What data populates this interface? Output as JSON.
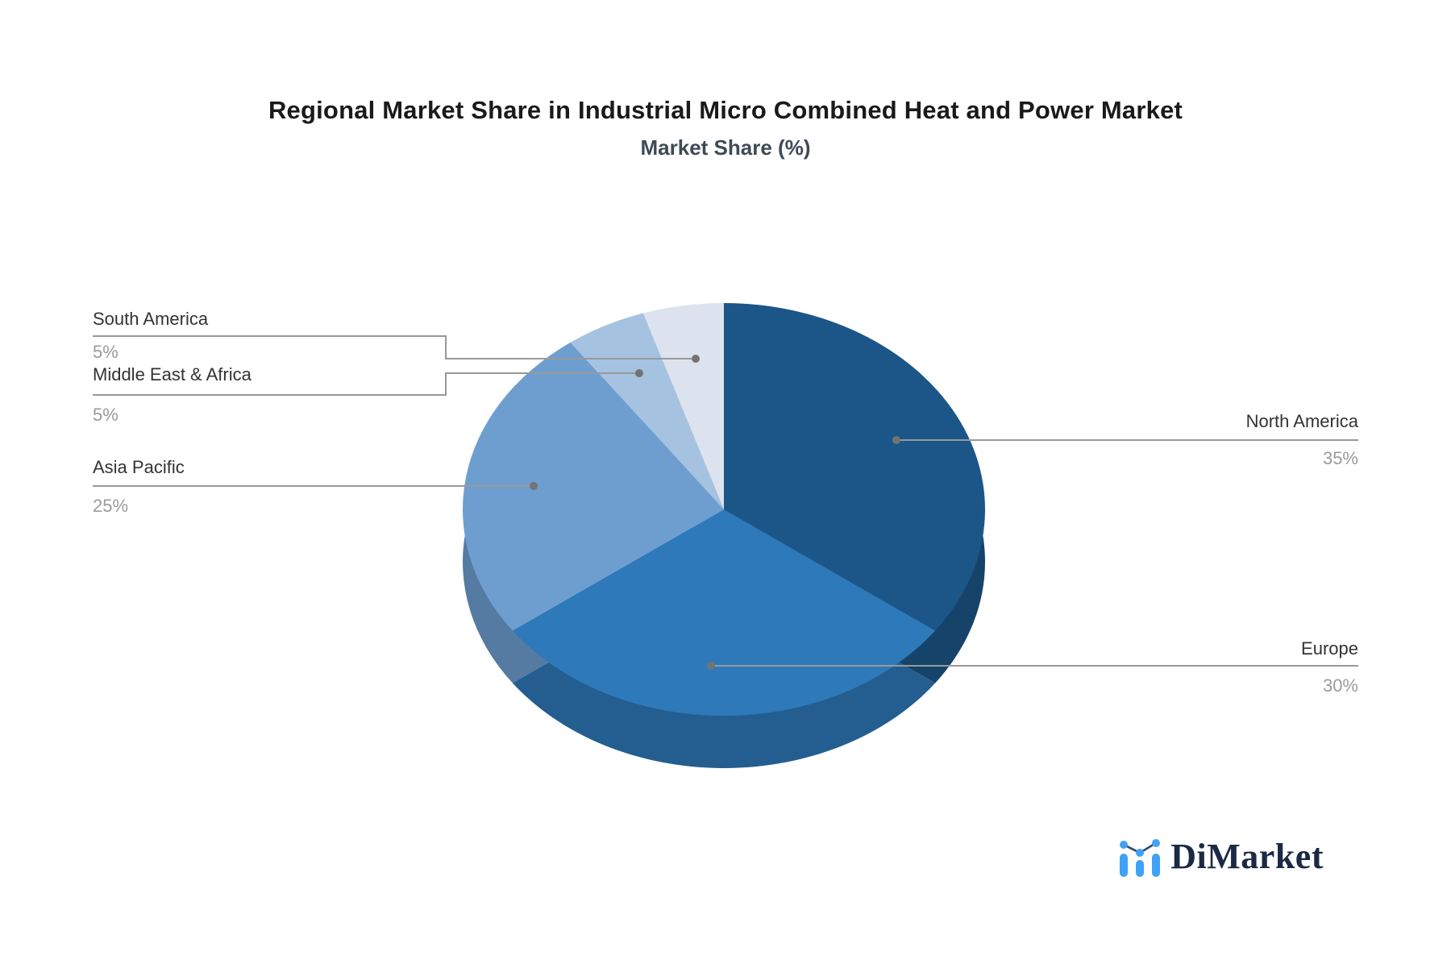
{
  "header": {
    "title": "Regional Market Share in Industrial Micro Combined Heat and Power Market",
    "subtitle": "Market Share (%)"
  },
  "chart_data": {
    "type": "pie",
    "title": "Regional Market Share in Industrial Micro Combined Heat and Power Market",
    "value_axis_label": "Market Share (%)",
    "unit": "%",
    "effect": "3d",
    "start_angle_clockwise_from_top_deg": 0,
    "legend_position": "callout-labels",
    "slices": [
      {
        "name": "North America",
        "value": 35,
        "value_label": "35%",
        "color": "#1C5688"
      },
      {
        "name": "Europe",
        "value": 30,
        "value_label": "30%",
        "color": "#2E79B9"
      },
      {
        "name": "Asia Pacific",
        "value": 25,
        "value_label": "25%",
        "color": "#6E9ED0"
      },
      {
        "name": "Middle East & Africa",
        "value": 5,
        "value_label": "5%",
        "color": "#A5C2E0"
      },
      {
        "name": "South America",
        "value": 5,
        "value_label": "5%",
        "color": "#DCE3EE"
      }
    ],
    "callout_line_color": "#999999",
    "callout_dot_color": "#737373",
    "label_color": "#333333",
    "value_color": "#9b9b9b"
  },
  "branding": {
    "logo_text": "DiMarket",
    "logo_icon": "bar-chart-trend-icon",
    "logo_icon_color": "#41A1F7",
    "logo_text_color": "#1b2a44"
  }
}
